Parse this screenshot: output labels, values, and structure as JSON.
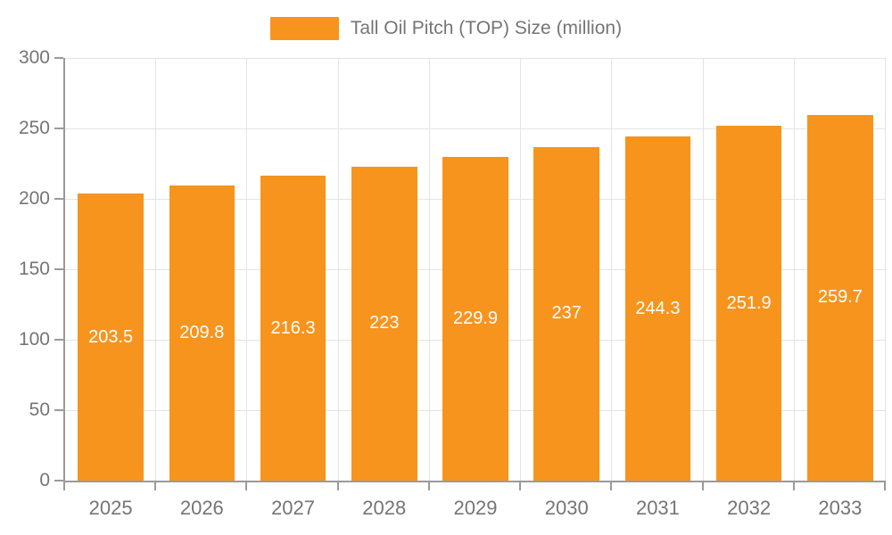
{
  "legend": {
    "label": "Tall Oil Pitch (TOP) Size (million)",
    "swatch_color": "#f7941e"
  },
  "chart_data": {
    "type": "bar",
    "title": "",
    "xlabel": "",
    "ylabel": "",
    "categories": [
      "2025",
      "2026",
      "2027",
      "2028",
      "2029",
      "2030",
      "2031",
      "2032",
      "2033"
    ],
    "values": [
      203.5,
      209.8,
      216.3,
      223,
      229.9,
      237,
      244.3,
      251.9,
      259.7
    ],
    "value_labels": [
      "203.5",
      "209.8",
      "216.3",
      "223",
      "229.9",
      "237",
      "244.3",
      "251.9",
      "259.7"
    ],
    "series_name": "Tall Oil Pitch (TOP) Size (million)",
    "ylim": [
      0,
      300
    ],
    "y_ticks": [
      0,
      50,
      100,
      150,
      200,
      250,
      300
    ],
    "grid": true,
    "legend_position": "top-center",
    "bar_color": "#f7941e",
    "bar_label_color": "#ffffff"
  },
  "colors": {
    "bar": "#f7941e",
    "gridline": "#e4e4e4",
    "axis": "#9a9a9a",
    "tick_text": "#757575",
    "background": "#ffffff"
  }
}
